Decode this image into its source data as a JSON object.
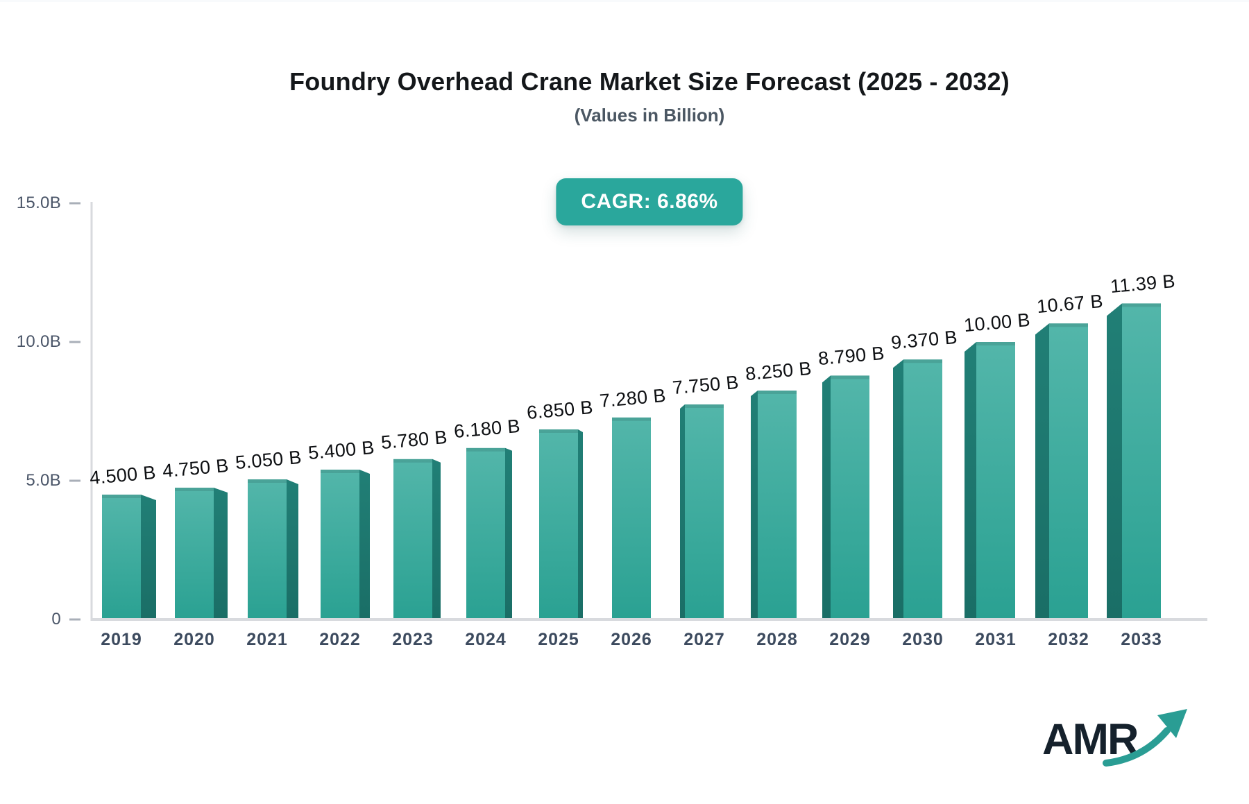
{
  "page": {
    "background": "#ffffff"
  },
  "header": {
    "title": "Foundry Overhead Crane Market Size Forecast (2025 - 2032)",
    "subtitle": "(Values in Billion)"
  },
  "badge": {
    "label": "CAGR: 6.86%"
  },
  "logo": {
    "text": "AMR",
    "arrow_icon": "trending-up-arrow-icon"
  },
  "chart_data": {
    "type": "bar",
    "title": "Foundry Overhead Crane Market Size Forecast (2025 - 2032)",
    "subtitle": "(Values in Billion)",
    "cagr_label": "CAGR: 6.86%",
    "categories": [
      "2019",
      "2020",
      "2021",
      "2022",
      "2023",
      "2024",
      "2025",
      "2026",
      "2027",
      "2028",
      "2029",
      "2030",
      "2031",
      "2032",
      "2033"
    ],
    "values": [
      4.5,
      4.75,
      5.05,
      5.4,
      5.78,
      6.18,
      6.85,
      7.28,
      7.75,
      8.25,
      8.79,
      9.37,
      10.0,
      10.67,
      11.39
    ],
    "value_labels": [
      "4.500 B",
      "4.750 B",
      "5.050 B",
      "5.400 B",
      "5.780 B",
      "6.180 B",
      "6.850 B",
      "7.280 B",
      "7.750 B",
      "8.250 B",
      "8.790 B",
      "9.370 B",
      "10.00 B",
      "10.67 B",
      "11.39 B"
    ],
    "xlabel": "",
    "ylabel": "",
    "ylim": [
      0,
      15
    ],
    "yticks": [
      {
        "value": 0,
        "label": "0"
      },
      {
        "value": 5,
        "label": "5.0B"
      },
      {
        "value": 10,
        "label": "10.0B"
      },
      {
        "value": 15,
        "label": "15.0B"
      }
    ],
    "grid": false,
    "legend": null,
    "bar_style": "3d-perspective",
    "colors": {
      "bar_face_top": "#53b6aa",
      "bar_face_bottom": "#2aa192",
      "bar_side": "#217f76",
      "bar_side_dark": "#1a6e66",
      "badge_bg": "#2aa79c",
      "badge_text": "#ffffff",
      "axis": "#d8dade",
      "tick": "#a9afb8",
      "title": "#14171a",
      "subtitle": "#4b5763",
      "tick_label": "#4a5568",
      "year_label": "#3c4a5e",
      "value_label": "#0d0f12",
      "logo_text": "#15212c",
      "logo_arrow": "#2a9d94",
      "background": "#ffffff"
    }
  }
}
